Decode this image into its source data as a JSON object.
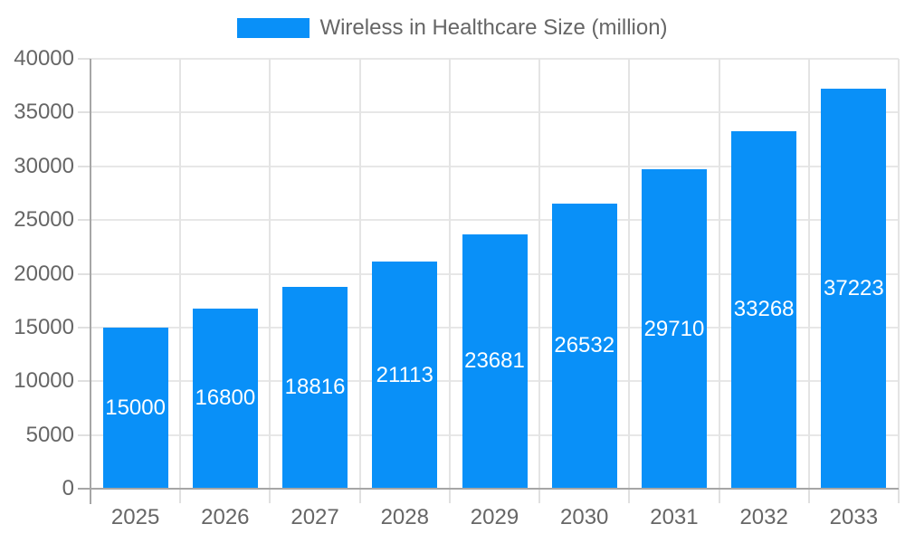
{
  "legend": {
    "label": "Wireless in Healthcare Size (million)"
  },
  "chart_data": {
    "type": "bar",
    "title": "Wireless in Healthcare Size (million)",
    "categories": [
      "2025",
      "2026",
      "2027",
      "2028",
      "2029",
      "2030",
      "2031",
      "2032",
      "2033"
    ],
    "values": [
      15000,
      16800,
      18816,
      21113,
      23681,
      26532,
      29710,
      33268,
      37223
    ],
    "xlabel": "",
    "ylabel": "",
    "ylim": [
      0,
      40000
    ],
    "ytick_step": 5000,
    "yticks": [
      0,
      5000,
      10000,
      15000,
      20000,
      25000,
      30000,
      35000,
      40000
    ],
    "grid": true,
    "legend_position": "top",
    "bar_color": "#0990f8",
    "value_label_color": "#ffffff"
  },
  "colors": {
    "bar": "#0990f8",
    "axis_line": "#a6a6a6",
    "gridline": "#e7e7e7",
    "tick_text": "#666666",
    "legend_text": "#666666",
    "background": "#ffffff"
  }
}
